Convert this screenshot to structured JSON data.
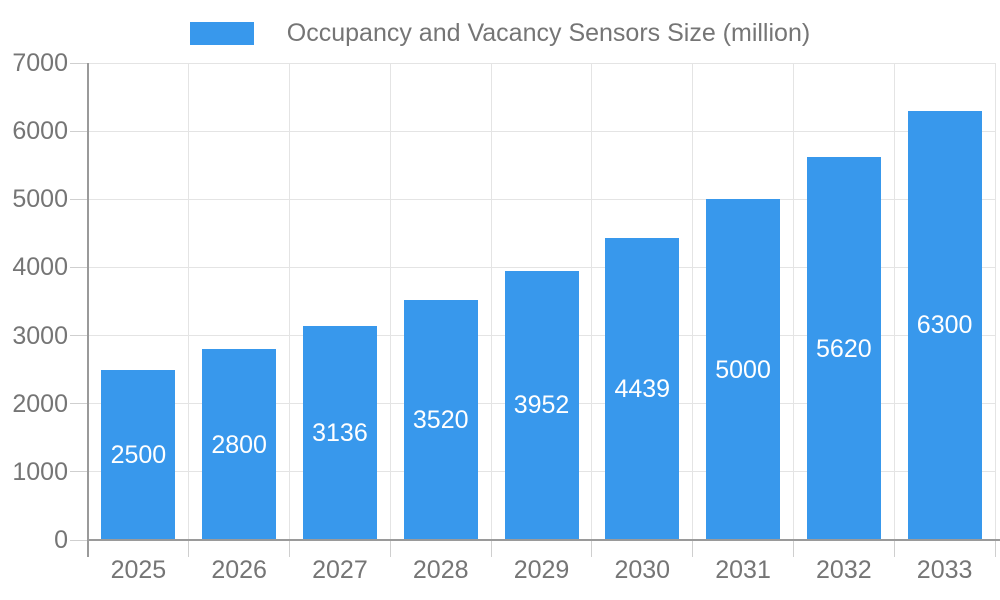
{
  "legend": {
    "position": "top",
    "swatch_color": "#3898EC",
    "label": "Occupancy and Vacancy Sensors Size (million)"
  },
  "chart_data": {
    "type": "bar",
    "title": "Occupancy and Vacancy Sensors Size (million)",
    "categories": [
      "2025",
      "2026",
      "2027",
      "2028",
      "2029",
      "2030",
      "2031",
      "2032",
      "2033"
    ],
    "values": [
      2500,
      2800,
      3136,
      3520,
      3952,
      4439,
      5000,
      5620,
      6300
    ],
    "bar_labels": [
      "2500",
      "2800",
      "3136",
      "3520",
      "3952",
      "4439",
      "5000",
      "5620",
      "6300"
    ],
    "series": [
      {
        "name": "Occupancy and Vacancy Sensors Size (million)",
        "values": [
          2500,
          2800,
          3136,
          3520,
          3952,
          4439,
          5000,
          5620,
          6300
        ]
      }
    ],
    "xlabel": "",
    "ylabel": "",
    "ylim": [
      0,
      7000
    ],
    "y_ticks": [
      0,
      1000,
      2000,
      3000,
      4000,
      5000,
      6000,
      7000
    ],
    "y_tick_labels": [
      "0",
      "1000",
      "2000",
      "3000",
      "4000",
      "5000",
      "6000",
      "7000"
    ],
    "grid": true,
    "legend_position": "top",
    "colors": {
      "bar": "#3898EC",
      "bar_label": "#FFFFFF",
      "axis_text": "#757575",
      "legend_text": "#757575",
      "grid_line": "#E4E4E4",
      "tick_line": "#CFCFCF",
      "axis_line": "#9A9A9A",
      "background": "#FFFFFF"
    }
  }
}
